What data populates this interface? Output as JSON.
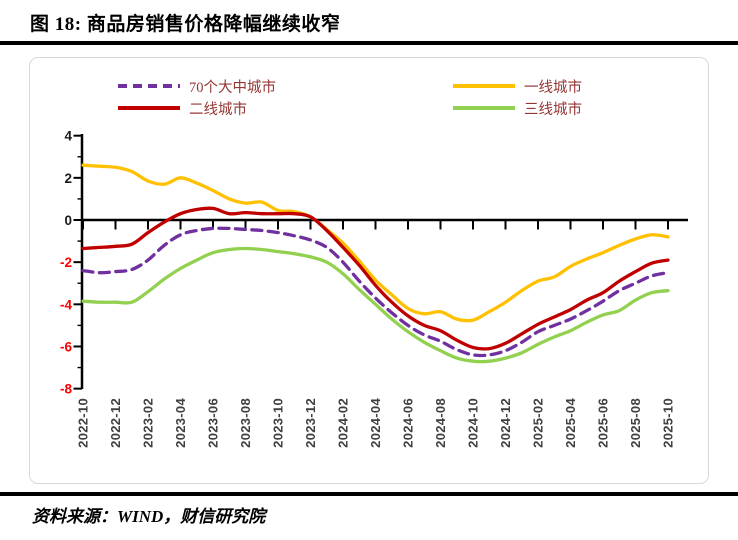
{
  "header": {
    "title": "图 18: 商品房销售价格降幅继续收窄"
  },
  "footer": {
    "source": "资料来源：WIND，财信研究院"
  },
  "chart_data": {
    "type": "line",
    "title": "图 18: 商品房销售价格降幅继续收窄",
    "x": [
      "2022-10",
      "2022-11",
      "2022-12",
      "2023-01",
      "2023-02",
      "2023-03",
      "2023-04",
      "2023-05",
      "2023-06",
      "2023-07",
      "2023-08",
      "2023-09",
      "2023-10",
      "2023-11",
      "2023-12",
      "2024-01",
      "2024-02",
      "2024-03",
      "2024-04",
      "2024-05",
      "2024-06",
      "2024-07",
      "2024-08",
      "2024-09",
      "2024-10",
      "2024-11",
      "2024-12",
      "2025-01",
      "2025-02",
      "2025-03",
      "2025-04",
      "2025-05",
      "2025-06",
      "2025-07",
      "2025-08",
      "2025-09",
      "2025-10"
    ],
    "x_tick_labels": [
      "2022-10",
      "2022-12",
      "2023-02",
      "2023-04",
      "2023-06",
      "2023-08",
      "2023-10",
      "2023-12",
      "2024-02",
      "2024-04",
      "2024-06",
      "2024-08",
      "2024-10",
      "2024-12",
      "2025-02",
      "2025-04",
      "2025-06",
      "2025-08",
      "2025-10"
    ],
    "series": [
      {
        "name": "70个大中城市",
        "key": "70-cities",
        "color": "#7030A0",
        "line_style": "dashed",
        "values": [
          -2.4,
          -2.5,
          -2.45,
          -2.35,
          -1.9,
          -1.2,
          -0.7,
          -0.5,
          -0.4,
          -0.4,
          -0.45,
          -0.5,
          -0.6,
          -0.75,
          -0.95,
          -1.3,
          -2.0,
          -2.9,
          -3.7,
          -4.4,
          -5.0,
          -5.45,
          -5.75,
          -6.15,
          -6.4,
          -6.4,
          -6.2,
          -5.8,
          -5.3,
          -5.0,
          -4.7,
          -4.3,
          -3.85,
          -3.35,
          -3.0,
          -2.65,
          -2.5
        ]
      },
      {
        "name": "一线城市",
        "key": "tier1",
        "color": "#FFC000",
        "line_style": "solid",
        "values": [
          2.6,
          2.55,
          2.5,
          2.3,
          1.85,
          1.7,
          2.0,
          1.75,
          1.4,
          1.0,
          0.8,
          0.85,
          0.45,
          0.4,
          0.15,
          -0.45,
          -1.1,
          -1.95,
          -2.85,
          -3.55,
          -4.2,
          -4.45,
          -4.35,
          -4.7,
          -4.75,
          -4.35,
          -3.9,
          -3.35,
          -2.9,
          -2.7,
          -2.2,
          -1.85,
          -1.55,
          -1.2,
          -0.9,
          -0.7,
          -0.8
        ]
      },
      {
        "name": "二线城市",
        "key": "tier2",
        "color": "#C00000",
        "line_style": "solid",
        "values": [
          -1.35,
          -1.3,
          -1.25,
          -1.15,
          -0.6,
          -0.1,
          0.3,
          0.5,
          0.55,
          0.3,
          0.35,
          0.3,
          0.3,
          0.3,
          0.15,
          -0.5,
          -1.3,
          -2.15,
          -3.1,
          -3.9,
          -4.55,
          -5.0,
          -5.25,
          -5.7,
          -6.05,
          -6.1,
          -5.85,
          -5.4,
          -4.95,
          -4.6,
          -4.25,
          -3.8,
          -3.45,
          -2.9,
          -2.45,
          -2.05,
          -1.9
        ]
      },
      {
        "name": "三线城市",
        "key": "tier3",
        "color": "#92D050",
        "line_style": "solid",
        "values": [
          -3.85,
          -3.9,
          -3.9,
          -3.9,
          -3.4,
          -2.8,
          -2.3,
          -1.9,
          -1.55,
          -1.4,
          -1.35,
          -1.4,
          -1.5,
          -1.6,
          -1.75,
          -2.0,
          -2.55,
          -3.3,
          -4.0,
          -4.7,
          -5.3,
          -5.8,
          -6.2,
          -6.55,
          -6.7,
          -6.7,
          -6.55,
          -6.3,
          -5.9,
          -5.55,
          -5.25,
          -4.85,
          -4.5,
          -4.3,
          -3.8,
          -3.45,
          -3.35
        ]
      }
    ],
    "ylim": [
      -8,
      4
    ],
    "y_ticks": [
      4,
      2,
      0,
      -2,
      -4,
      -6,
      -8
    ],
    "y_tick_colors": {
      "positive": "#1a1a1a",
      "negative": "#FF0000"
    },
    "x_label_color": "#404040",
    "grid": false,
    "legend_position": "top",
    "legend_text_color": "#953735"
  }
}
